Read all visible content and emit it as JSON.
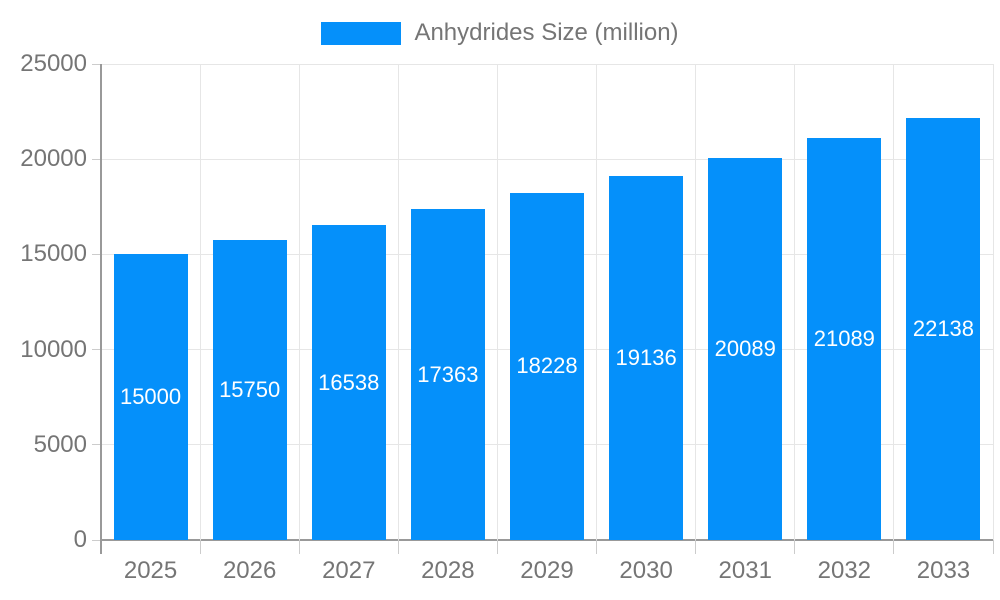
{
  "legend": {
    "label": "Anhydrides Size (million)"
  },
  "colors": {
    "bar": "#0590fa",
    "grid": "#e6e6e6",
    "axis": "#999999",
    "tick": "#cccccc",
    "axis_text": "#757575",
    "value_text": "#ffffff",
    "background": "#ffffff"
  },
  "chart_data": {
    "type": "bar",
    "title": "Anhydrides Size (million)",
    "categories": [
      "2025",
      "2026",
      "2027",
      "2028",
      "2029",
      "2030",
      "2031",
      "2032",
      "2033"
    ],
    "values": [
      15000,
      15750,
      16538,
      17363,
      18228,
      19136,
      20089,
      21089,
      22138
    ],
    "series_name": "Anhydrides Size (million)",
    "xlabel": "",
    "ylabel": "",
    "ylim": [
      0,
      25000
    ],
    "ytick_step": 5000,
    "ytick_labels": [
      "0",
      "5000",
      "10000",
      "15000",
      "20000",
      "25000"
    ],
    "grid": true,
    "legend_position": "top-center",
    "bar_labels_inside": true
  }
}
